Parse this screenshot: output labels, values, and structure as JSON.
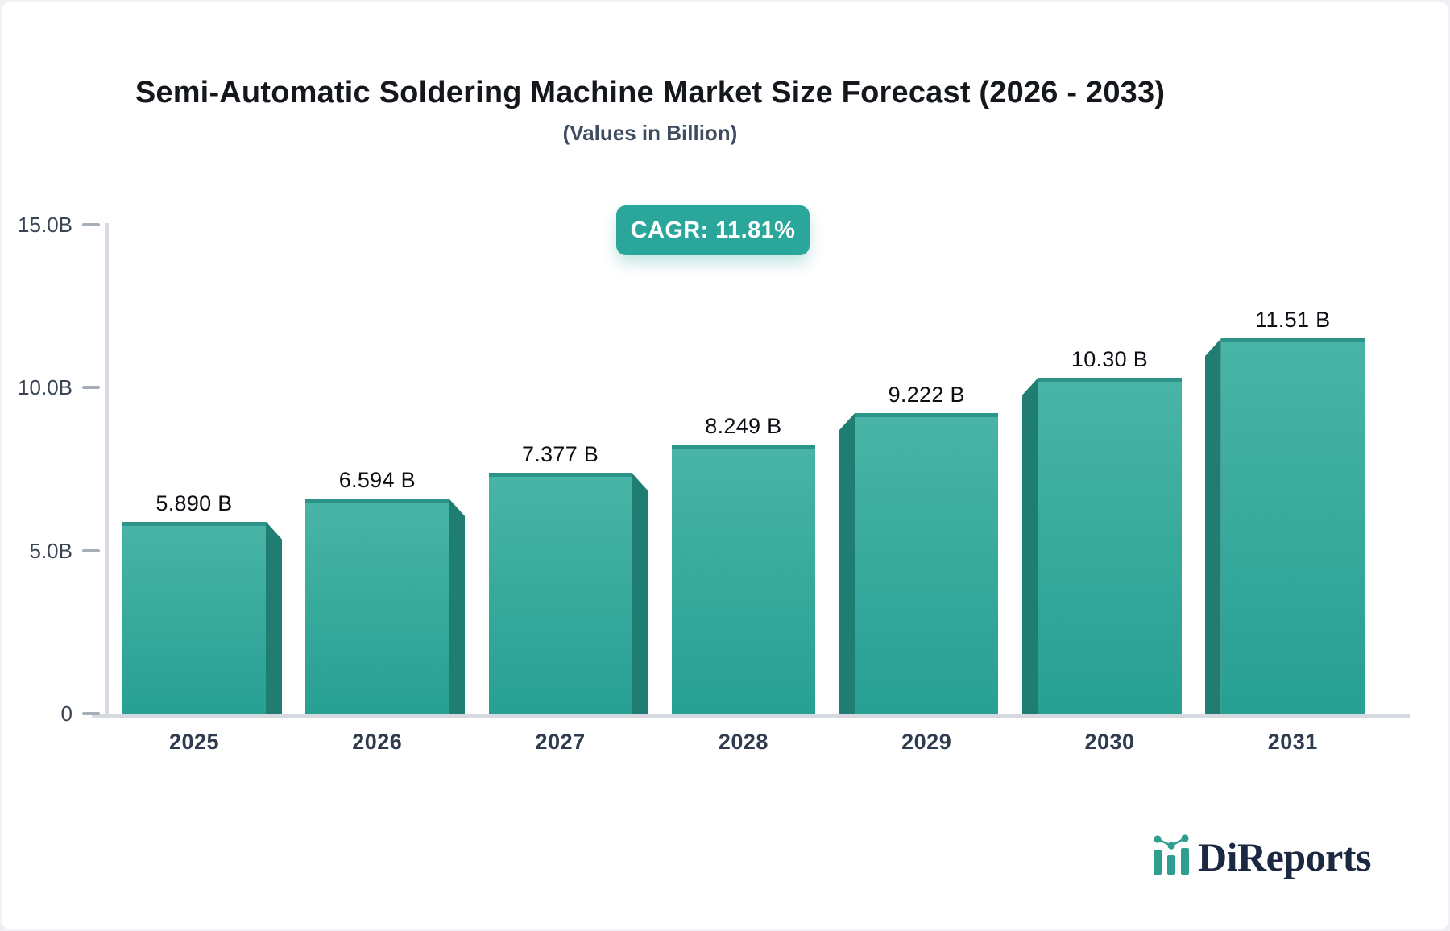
{
  "header": {
    "title": "Semi-Automatic Soldering Machine Market Size Forecast (2026 - 2033)",
    "subtitle": "(Values in Billion)",
    "cagr_badge": "CAGR: 11.81%"
  },
  "chart_data": {
    "type": "bar",
    "style": "3d-perspective-bars",
    "title": "Semi-Automatic Soldering Machine Market Size Forecast (2026 - 2033)",
    "subtitle": "(Values in Billion)",
    "categories": [
      "2025",
      "2026",
      "2027",
      "2028",
      "2029",
      "2030",
      "2031"
    ],
    "values": [
      5.89,
      6.594,
      7.377,
      8.249,
      9.222,
      10.3,
      11.51
    ],
    "value_labels": [
      "5.890 B",
      "6.594 B",
      "7.377 B",
      "8.249 B",
      "9.222 B",
      "10.30 B",
      "11.51 B"
    ],
    "xlabel": "",
    "ylabel": "",
    "ylim": [
      0,
      15
    ],
    "yticks": [
      {
        "value": 15,
        "label": "15.0B"
      },
      {
        "value": 10,
        "label": "10.0B"
      },
      {
        "value": 5,
        "label": "5.0B"
      },
      {
        "value": 0,
        "label": "0"
      }
    ],
    "grid": false,
    "legend": "none",
    "annotation": "CAGR: 11.81%"
  },
  "colors": {
    "bar_face_top": "#48B4A6",
    "bar_face_bottom": "#27A092",
    "bar_top_edge": "#2C9488",
    "bar_side": "#1F7D72",
    "axis": "#D6D9DF",
    "tick": "#A8AEB9",
    "badge_bg": "#2AA79A",
    "badge_text": "#FFFFFF",
    "logo_teal": "#2F9E90",
    "logo_navy": "#1A2841"
  },
  "logo": {
    "text": "DiReports",
    "icon": "mini-bar-chart-icon"
  }
}
